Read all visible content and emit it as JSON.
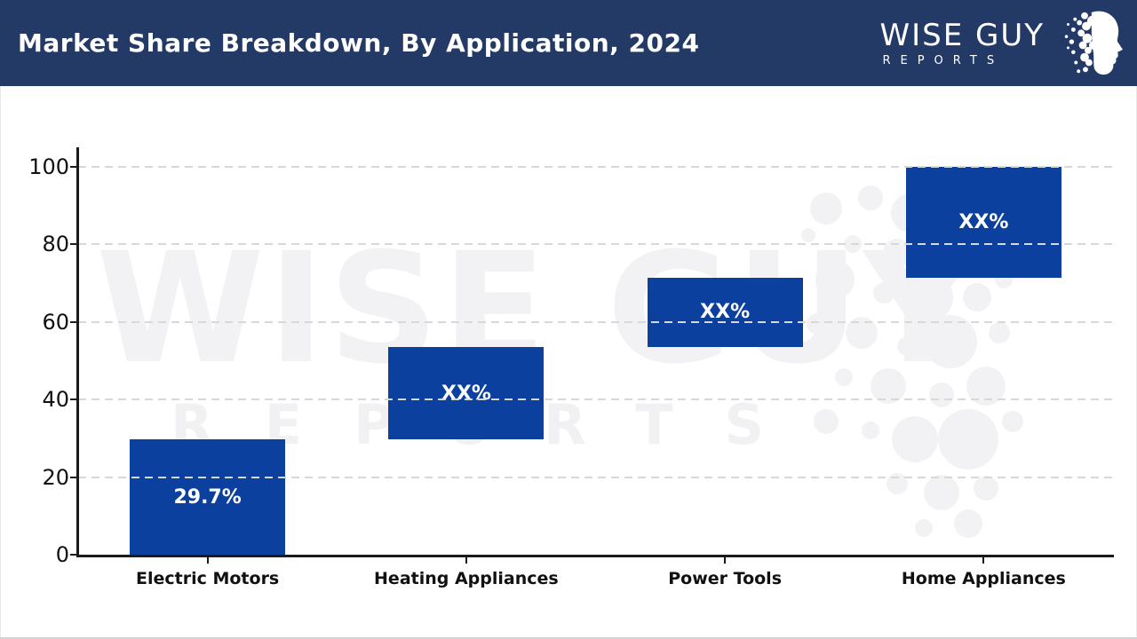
{
  "header": {
    "title": "Market Share Breakdown, By Application, 2024",
    "logo": {
      "brand_line1": "WISE GUY",
      "brand_line2": "REPORTS"
    }
  },
  "watermark": {
    "line1": "WISE GUY",
    "line2": "REPORTS"
  },
  "chart_data": {
    "type": "bar",
    "variant": "floating-waterfall",
    "title": "Market Share Breakdown, By Application, 2024",
    "categories": [
      "Electric Motors",
      "Heating Appliances",
      "Power Tools",
      "Home Appliances"
    ],
    "segments": [
      {
        "category": "Electric Motors",
        "start": 0,
        "end": 29.7,
        "label": "29.7%"
      },
      {
        "category": "Heating Appliances",
        "start": 29.7,
        "end": 53.5,
        "label": "XX%"
      },
      {
        "category": "Power Tools",
        "start": 53.5,
        "end": 71.4,
        "label": "XX%"
      },
      {
        "category": "Home Appliances",
        "start": 71.4,
        "end": 100,
        "label": "XX%"
      }
    ],
    "yticks": [
      0,
      20,
      40,
      60,
      80,
      100
    ],
    "ylim": [
      0,
      105
    ],
    "xlabel": "",
    "ylabel": "",
    "legend": "none",
    "grid": "horizontal-dashed-drawn-over-bars",
    "bar_color": "#0b409e",
    "bar_label_color": "#ffffff"
  },
  "colors": {
    "header_bg": "#243a66",
    "bar": "#0b409e",
    "watermark": "#f2f2f4",
    "gridline": "#d8d8d8",
    "axis": "#1a1a1a",
    "page_bg": "#ffffff"
  }
}
